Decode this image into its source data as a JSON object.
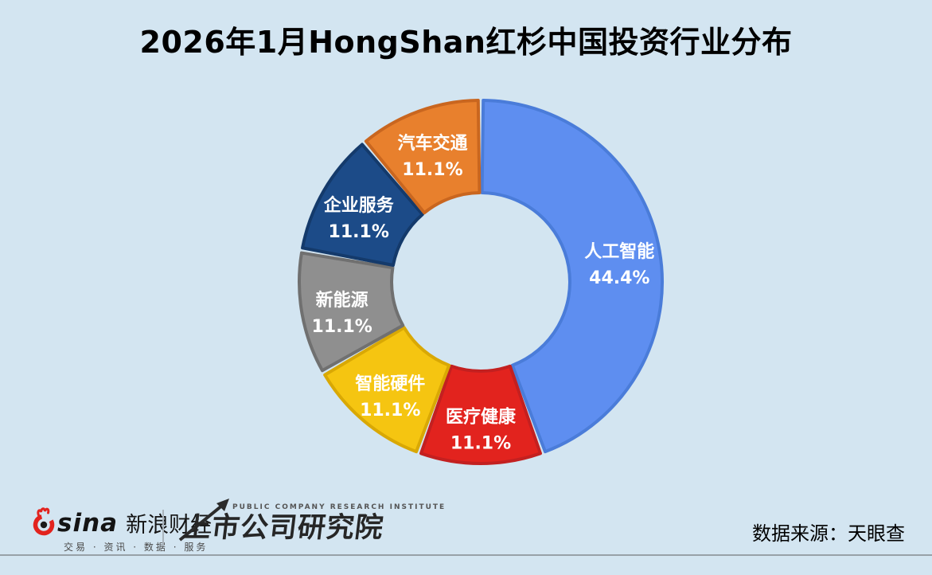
{
  "page": {
    "background": "#D3E5F1"
  },
  "chart_data": {
    "type": "pie",
    "subtype": "donut",
    "title": "2026年1月HongShan红杉中国投资行业分布",
    "unit": "%",
    "start_angle": "top",
    "direction": "clockwise",
    "legend_position": "none",
    "labels_inside": true,
    "label_color": "#FFFFFF",
    "categories": [
      "人工智能",
      "医疗健康",
      "智能硬件",
      "新能源",
      "企业服务",
      "汽车交通"
    ],
    "values": [
      44.4,
      11.1,
      11.1,
      11.1,
      11.1,
      11.1
    ],
    "percent_labels": [
      "44.4%",
      "11.1%",
      "11.1%",
      "11.1%",
      "11.1%",
      "11.1%"
    ],
    "colors": [
      "#5E8EF0",
      "#E2231E",
      "#F5C511",
      "#8F8F8F",
      "#1C4B88",
      "#E8802D"
    ],
    "border_colors": [
      "#4A7CD9",
      "#C32020",
      "#D9A804",
      "#707070",
      "#143A6B",
      "#C9661F"
    ]
  },
  "footer": {
    "sina": {
      "wordmark": "sina",
      "brand": "新浪财经",
      "tagline": "交易 · 资讯 · 数据 · 服务"
    },
    "institute": {
      "en": "PUBLIC COMPANY RESEARCH INSTITUTE",
      "zh": "上市公司研究院"
    },
    "source": "数据来源：天眼查"
  }
}
